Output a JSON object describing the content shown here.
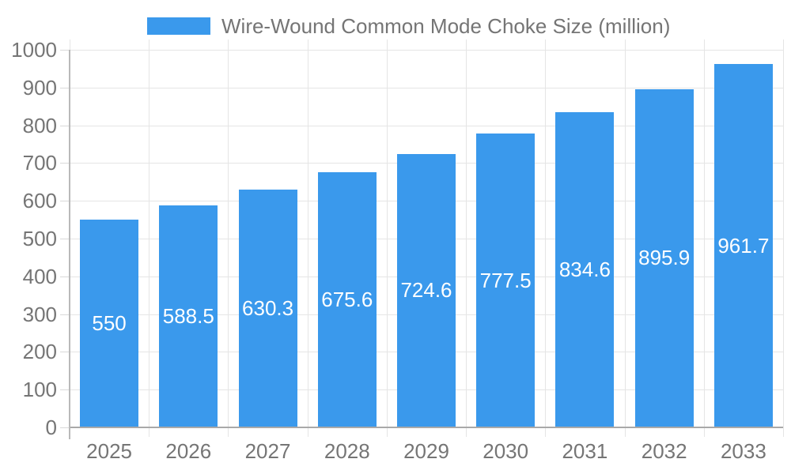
{
  "legend": {
    "label": "Wire-Wound Common Mode Choke Size (million)"
  },
  "chart_data": {
    "type": "bar",
    "title": "Wire-Wound Common Mode Choke Size (million)",
    "categories": [
      "2025",
      "2026",
      "2027",
      "2028",
      "2029",
      "2030",
      "2031",
      "2032",
      "2033"
    ],
    "values": [
      550,
      588.5,
      630.3,
      675.6,
      724.6,
      777.5,
      834.6,
      895.9,
      961.7
    ],
    "value_labels": [
      "550",
      "588.5",
      "630.3",
      "675.6",
      "724.6",
      "777.5",
      "834.6",
      "895.9",
      "961.7"
    ],
    "xlabel": "",
    "ylabel": "",
    "ylim": [
      0,
      1000
    ],
    "yticks": [
      0,
      100,
      200,
      300,
      400,
      500,
      600,
      700,
      800,
      900,
      1000
    ],
    "grid": "both",
    "legend_position": "top",
    "bar_label_position": "center"
  },
  "colors": {
    "bar": "#3a99ec",
    "bar_label": "#ffffff",
    "axis_text": "#757575",
    "gridline": "#e5e5e5",
    "tick": "#d9d9d9",
    "x_axis_line": "#a9a9a9",
    "y_axis_line": "#b9b9b9",
    "background": "#ffffff"
  }
}
